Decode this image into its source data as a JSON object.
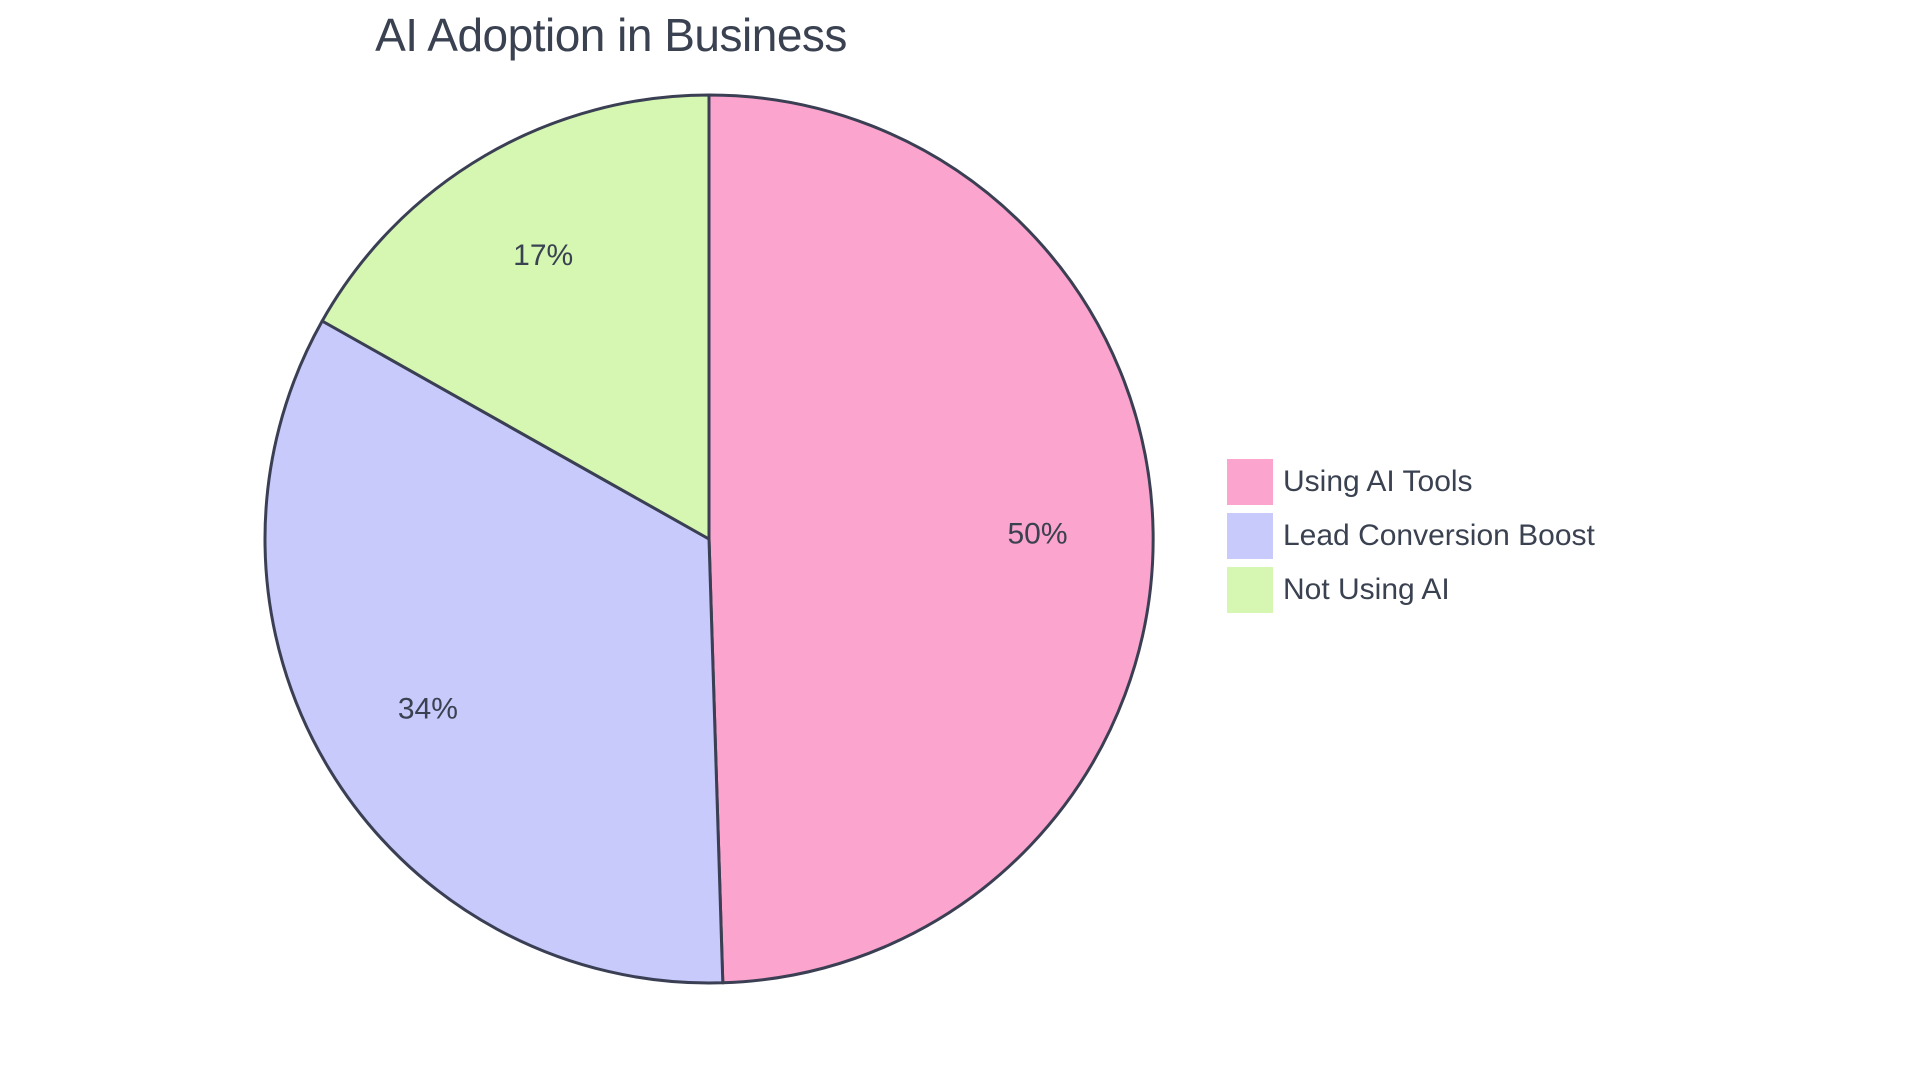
{
  "page": {
    "background": "#FFFFFF"
  },
  "chart_data": {
    "type": "pie",
    "title": "AI Adoption in Business",
    "legend_position": "right",
    "grid": false,
    "slices": [
      {
        "label": "Using AI Tools",
        "value": 50,
        "pct_label": "50%",
        "color": "#FBA4CD"
      },
      {
        "label": "Lead Conversion Boost",
        "value": 34,
        "pct_label": "34%",
        "color": "#C7CAFB"
      },
      {
        "label": "Not Using AI",
        "value": 17,
        "pct_label": "17%",
        "color": "#D5F7B2"
      }
    ],
    "styles": {
      "stroke_color": "#3B3F54",
      "stroke_width": 3,
      "label_color": "#3A4150",
      "title_color": "#3A4150",
      "background": "#FFFFFF"
    }
  }
}
